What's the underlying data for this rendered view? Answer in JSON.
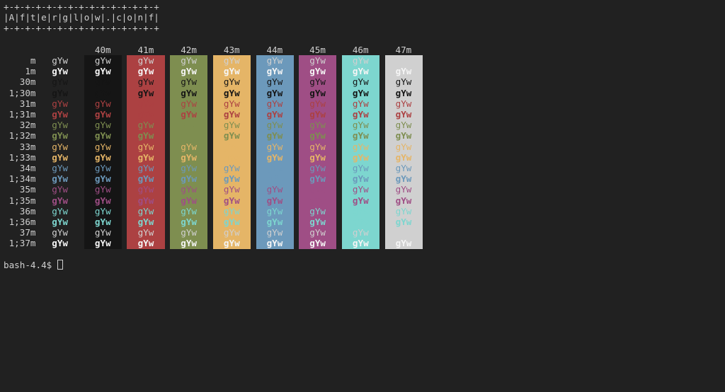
{
  "terminal": {
    "background": "#212121",
    "foreground": "#d0d0d0",
    "banner": [
      "+-+-+-+-+-+-+-+-+-+-+-+-+-+-+",
      "|A|f|t|e|r|g|l|o|w|.|c|o|n|f|",
      "+-+-+-+-+-+-+-+-+-+-+-+-+-+-+"
    ],
    "prompt": "bash-4.4$",
    "cursor_style": "hollow-block",
    "cursor_color": "#cfcfcf"
  },
  "color_test": {
    "sample_text": "gYw",
    "column_headers": [
      "40m",
      "41m",
      "42m",
      "43m",
      "44m",
      "45m",
      "46m",
      "47m"
    ],
    "column_bg_colors": [
      "#151515",
      "#ac4142",
      "#7e8e50",
      "#e5b567",
      "#6c99bb",
      "#9f4e85",
      "#7dd6cf",
      "#d0d0d0"
    ],
    "rows": [
      {
        "label": "m",
        "color": "#d0d0d0",
        "bold": false
      },
      {
        "label": "1m",
        "color": "#f5f5f5",
        "bold": true
      },
      {
        "label": "30m",
        "color": "#151515",
        "bold": false
      },
      {
        "label": "1;30m",
        "color": "#151515",
        "bold": true
      },
      {
        "label": "31m",
        "color": "#ac4142",
        "bold": false
      },
      {
        "label": "1;31m",
        "color": "#ac4142",
        "bold": true
      },
      {
        "label": "32m",
        "color": "#7e8e50",
        "bold": false
      },
      {
        "label": "1;32m",
        "color": "#7e8e50",
        "bold": true
      },
      {
        "label": "33m",
        "color": "#e5b567",
        "bold": false
      },
      {
        "label": "1;33m",
        "color": "#e5b567",
        "bold": true
      },
      {
        "label": "34m",
        "color": "#6c99bb",
        "bold": false
      },
      {
        "label": "1;34m",
        "color": "#6c99bb",
        "bold": true
      },
      {
        "label": "35m",
        "color": "#9f4e85",
        "bold": false
      },
      {
        "label": "1;35m",
        "color": "#9f4e85",
        "bold": true
      },
      {
        "label": "36m",
        "color": "#7dd6cf",
        "bold": false
      },
      {
        "label": "1;36m",
        "color": "#7dd6cf",
        "bold": true
      },
      {
        "label": "37m",
        "color": "#d0d0d0",
        "bold": false
      },
      {
        "label": "1;37m",
        "color": "#f5f5f5",
        "bold": true
      }
    ]
  }
}
